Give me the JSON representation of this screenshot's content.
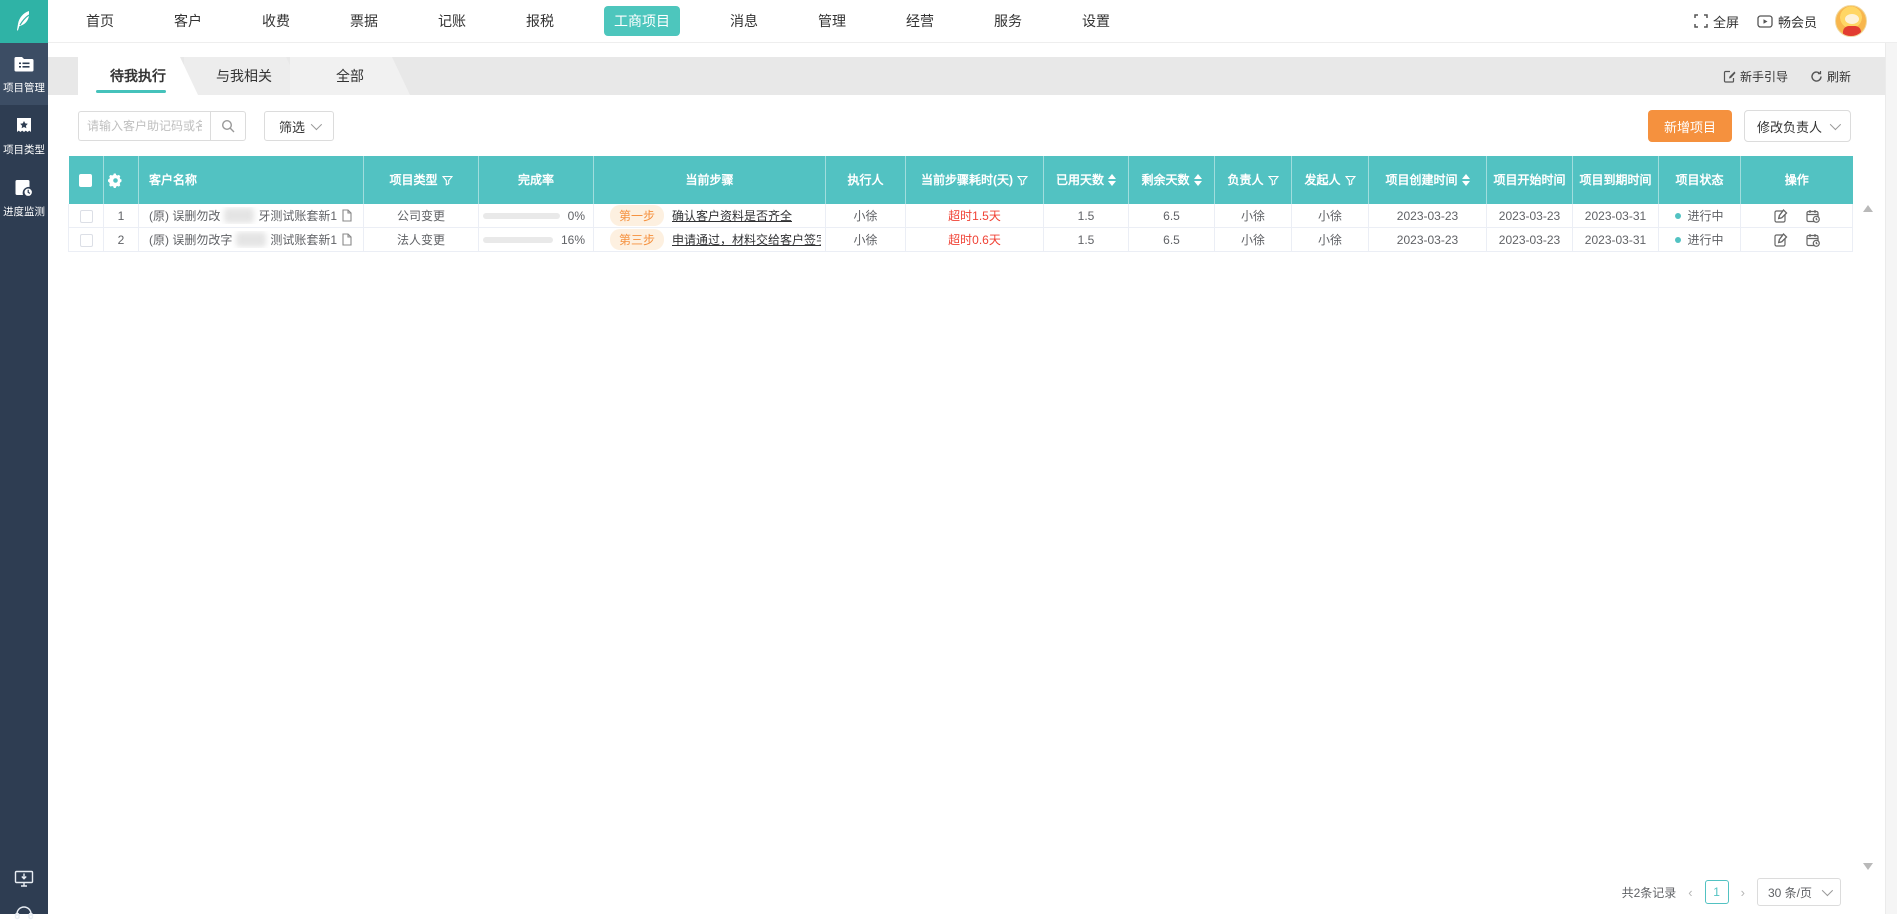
{
  "topnav": {
    "items": [
      "首页",
      "客户",
      "收费",
      "票据",
      "记账",
      "报税",
      "工商项目",
      "消息",
      "管理",
      "经营",
      "服务",
      "设置"
    ],
    "active_item": "工商项目",
    "fullscreen_label": "全屏",
    "member_label": "畅会员"
  },
  "sidebar": {
    "items": [
      "项目管理",
      "项目类型",
      "进度监测"
    ]
  },
  "tabs": {
    "items": [
      "待我执行",
      "与我相关",
      "全部"
    ],
    "active": "待我执行"
  },
  "header_actions": {
    "guide": "新手引导",
    "refresh": "刷新"
  },
  "toolbar": {
    "search_placeholder": "请输入客户助记码或名称",
    "filter_label": "筛选",
    "new_project_label": "新增项目",
    "modify_owner_label": "修改负责人"
  },
  "table": {
    "columns": [
      "客户名称",
      "项目类型",
      "完成率",
      "当前步骤",
      "执行人",
      "当前步骤耗时(天)",
      "已用天数",
      "剩余天数",
      "负责人",
      "发起人",
      "项目创建时间",
      "项目开始时间",
      "项目到期时间",
      "项目状态",
      "操作"
    ],
    "rows": [
      {
        "no": "1",
        "customer_prefix": "(原) 误删勿改",
        "customer_suffix": "牙测试账套新1",
        "project_type": "公司变更",
        "progress_pct": 0,
        "progress_label": "0%",
        "step_badge": "第一步",
        "step_text": "确认客户资料是否齐全",
        "executor": "小徐",
        "step_elapsed": "超时1.5天",
        "used_days": "1.5",
        "remain_days": "6.5",
        "owner": "小徐",
        "initiator": "小徐",
        "created": "2023-03-23",
        "start": "2023-03-23",
        "due": "2023-03-31",
        "status": "进行中"
      },
      {
        "no": "2",
        "customer_prefix": "(原) 误删勿改字",
        "customer_suffix": "测试账套新1",
        "project_type": "法人变更",
        "progress_pct": 16,
        "progress_label": "16%",
        "step_badge": "第三步",
        "step_text": "申请通过，材料交给客户签字",
        "executor": "小徐",
        "step_elapsed": "超时0.6天",
        "used_days": "1.5",
        "remain_days": "6.5",
        "owner": "小徐",
        "initiator": "小徐",
        "created": "2023-03-23",
        "start": "2023-03-23",
        "due": "2023-03-31",
        "status": "进行中"
      }
    ]
  },
  "pagination": {
    "total": "共2条记录",
    "current_page": "1",
    "page_size": "30 条/页"
  },
  "colors": {
    "accent_teal": "#52c2c2",
    "accent_orange": "#f5913e",
    "overdue_red": "#f04134",
    "sidebar_bg": "#2e3d52"
  }
}
